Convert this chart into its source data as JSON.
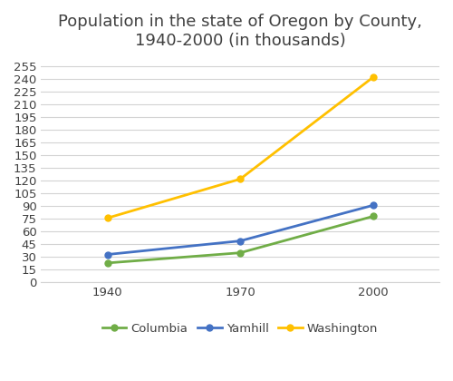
{
  "title": "Population in the state of Oregon by County,\n1940-2000 (in thousands)",
  "years": [
    1940,
    1970,
    2000
  ],
  "series": [
    {
      "name": "Columbia",
      "values": [
        23,
        35,
        78
      ],
      "color": "#70ad47",
      "marker": "o"
    },
    {
      "name": "Yamhill",
      "values": [
        33,
        49,
        91
      ],
      "color": "#4472c4",
      "marker": "o"
    },
    {
      "name": "Washington",
      "values": [
        76,
        122,
        242
      ],
      "color": "#ffc000",
      "marker": "o"
    }
  ],
  "yticks": [
    0,
    15,
    30,
    45,
    60,
    75,
    90,
    105,
    120,
    135,
    150,
    165,
    180,
    195,
    210,
    225,
    240,
    255
  ],
  "ylim": [
    0,
    265
  ],
  "background_color": "#ffffff",
  "grid_color": "#d3d3d3",
  "title_color": "#404040",
  "title_fontsize": 13,
  "tick_fontsize": 9.5,
  "legend_fontsize": 9.5
}
